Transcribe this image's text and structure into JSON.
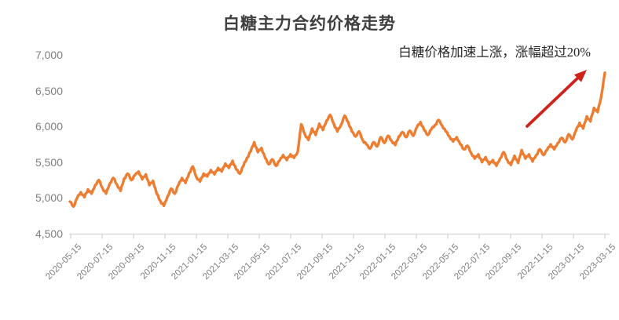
{
  "title": "白糖主力合约价格走势",
  "annotation": {
    "text": "白糖价格加速上涨，涨幅超过20%"
  },
  "colors": {
    "line": "#ED7D31",
    "arrow": "#CE221B",
    "title_text": "#3F3F3F",
    "annotation_text": "#262626",
    "axis_label_text": "#7F7F7F",
    "axis_line": "#D9D9D9",
    "background": "#FFFFFF"
  },
  "chart_data": {
    "type": "line",
    "title": "白糖主力合约价格走势",
    "xlabel": "",
    "ylabel": "",
    "grid": false,
    "legend_position": "none",
    "ylim": [
      4500,
      7000
    ],
    "y_tick_values": [
      7000,
      6500,
      6000,
      5500,
      5000,
      4500
    ],
    "y_tick_labels": [
      "7,000",
      "6,500",
      "6,000",
      "5,500",
      "5,000",
      "4,500"
    ],
    "x_tick_labels": [
      "2020-05-15",
      "2020-07-15",
      "2020-09-15",
      "2020-11-15",
      "2021-01-15",
      "2021-03-15",
      "2021-05-15",
      "2021-07-15",
      "2021-09-15",
      "2021-11-15",
      "2022-01-15",
      "2022-03-15",
      "2022-05-15",
      "2022-07-15",
      "2022-09-15",
      "2022-11-15",
      "2023-01-15",
      "2023-03-15"
    ],
    "series": [
      {
        "name": "白糖主力合约价格",
        "start_date": "2020-05-15",
        "interval_days": 7,
        "values": [
          4950,
          4880,
          5000,
          5080,
          5010,
          5120,
          5060,
          5180,
          5250,
          5140,
          5060,
          5200,
          5280,
          5190,
          5100,
          5270,
          5340,
          5250,
          5320,
          5370,
          5260,
          5330,
          5180,
          5240,
          5060,
          4960,
          4890,
          5020,
          5130,
          5060,
          5180,
          5280,
          5210,
          5350,
          5440,
          5290,
          5230,
          5340,
          5300,
          5390,
          5330,
          5420,
          5370,
          5480,
          5420,
          5520,
          5400,
          5340,
          5450,
          5560,
          5650,
          5780,
          5640,
          5700,
          5560,
          5470,
          5540,
          5450,
          5520,
          5600,
          5530,
          5610,
          5560,
          5640,
          6030,
          5890,
          5810,
          5970,
          5880,
          6040,
          5950,
          6080,
          6160,
          6040,
          5930,
          6020,
          6150,
          6060,
          5930,
          5860,
          5930,
          5810,
          5750,
          5690,
          5780,
          5720,
          5850,
          5770,
          5870,
          5800,
          5740,
          5860,
          5920,
          5850,
          5940,
          5870,
          5990,
          6060,
          5950,
          5880,
          5960,
          6020,
          6090,
          6010,
          5930,
          5860,
          5790,
          5850,
          5750,
          5680,
          5730,
          5630,
          5550,
          5610,
          5500,
          5570,
          5470,
          5530,
          5450,
          5550,
          5640,
          5530,
          5460,
          5590,
          5490,
          5670,
          5550,
          5610,
          5510,
          5600,
          5680,
          5600,
          5670,
          5750,
          5680,
          5770,
          5840,
          5780,
          5890,
          5820,
          5940,
          6050,
          5970,
          6140,
          6070,
          6260,
          6200,
          6420,
          6750
        ]
      }
    ],
    "annotations": [
      {
        "type": "text",
        "text": "白糖价格加速上涨，涨幅超过20%"
      },
      {
        "type": "arrow",
        "direction": "up-right"
      }
    ]
  }
}
